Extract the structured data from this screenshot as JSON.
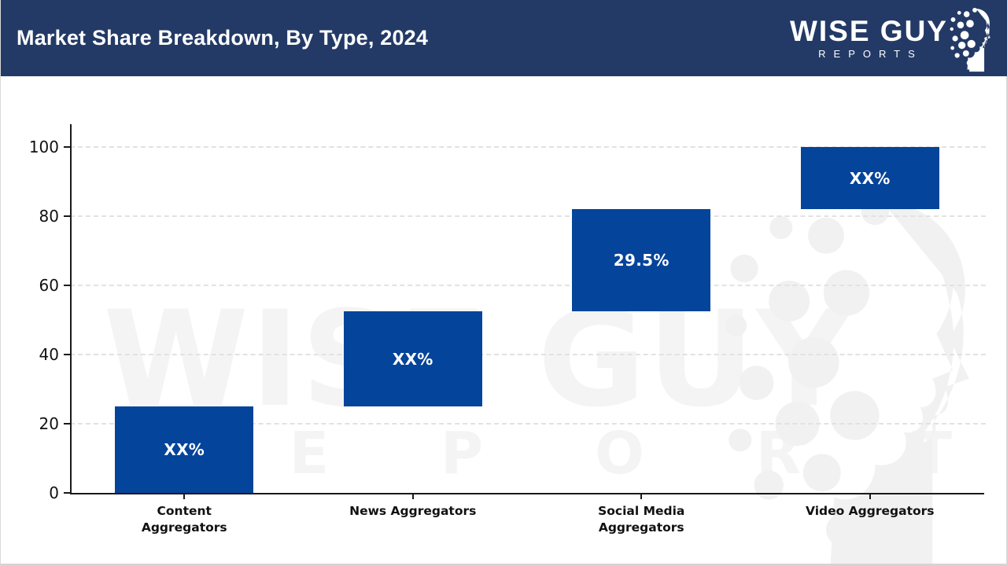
{
  "header": {
    "title": "Market Share Breakdown, By Type, 2024",
    "logo_line1": "WISE GUY",
    "logo_line2": "REPORTS",
    "bg_color": "#233a66"
  },
  "watermark": {
    "line1": "WISE GUY",
    "line2": "R E P O R T S"
  },
  "chart_data": {
    "type": "bar",
    "subtype": "waterfall-floating-bars",
    "title": "Market Share Breakdown, By Type, 2024",
    "ylabel": "",
    "xlabel": "",
    "ylim": [
      0,
      107
    ],
    "yticks": [
      0,
      20,
      40,
      60,
      80,
      100
    ],
    "grid": "horizontal dashed",
    "legend": "none",
    "bar_color": "#04449a",
    "bar_label_color": "#ffffff",
    "categories": [
      "Content Aggregators",
      "News Aggregators",
      "Social Media Aggregators",
      "Video Aggregators"
    ],
    "category_lines": [
      [
        "Content",
        "Aggregators"
      ],
      [
        "News Aggregators"
      ],
      [
        "Social Media",
        "Aggregators"
      ],
      [
        "Video Aggregators"
      ]
    ],
    "segments": [
      {
        "category": "Content Aggregators",
        "start": 0,
        "end": 25,
        "label": "XX%"
      },
      {
        "category": "News Aggregators",
        "start": 25,
        "end": 52.5,
        "label": "XX%"
      },
      {
        "category": "Social Media Aggregators",
        "start": 52.5,
        "end": 82,
        "label": "29.5%"
      },
      {
        "category": "Video Aggregators",
        "start": 82,
        "end": 100,
        "label": "XX%"
      }
    ]
  }
}
